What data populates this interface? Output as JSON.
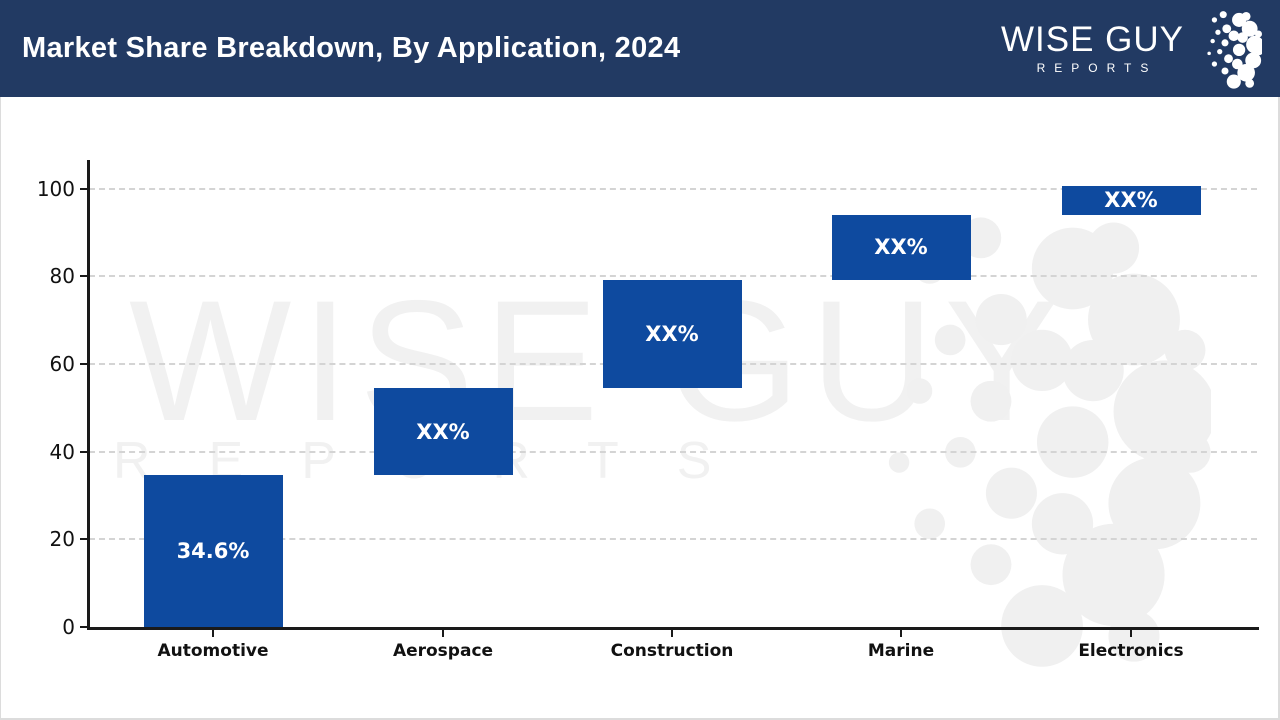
{
  "header": {
    "title": "Market Share Breakdown, By Application, 2024",
    "logo": {
      "primary": "WISE GUY",
      "secondary": "REPORTS",
      "icon": "dotted-face-logo"
    }
  },
  "watermark": {
    "line1": "WISE GUY",
    "line2": "REPORTS",
    "icon": "dotted-face-watermark"
  },
  "chart_data": {
    "type": "bar",
    "subtype": "waterfall",
    "title": "Market Share Breakdown, By Application, 2024",
    "categories": [
      "Automotive",
      "Aerospace",
      "Construction",
      "Marine",
      "Electronics"
    ],
    "segments": [
      {
        "category": "Automotive",
        "start": 0,
        "end": 34.6,
        "label": "34.6%"
      },
      {
        "category": "Aerospace",
        "start": 34.6,
        "end": 54.4,
        "label": "XX%"
      },
      {
        "category": "Construction",
        "start": 54.4,
        "end": 79.2,
        "label": "XX%"
      },
      {
        "category": "Marine",
        "start": 79.2,
        "end": 94.0,
        "label": "XX%"
      },
      {
        "category": "Electronics",
        "start": 94.0,
        "end": 100.6,
        "label": "XX%"
      }
    ],
    "y_ticks": [
      0,
      20,
      40,
      60,
      80,
      100
    ],
    "ylim": [
      0,
      106
    ],
    "xlabel": "",
    "ylabel": "",
    "grid": "horizontal-dashed",
    "legend": "none",
    "bar_color": "#0E4A9F",
    "bar_label_color": "#FFFFFF"
  },
  "colors": {
    "header_bg": "#223A63",
    "content_bg": "#FFFFFF",
    "border": "#DCDCDC",
    "grid": "#D4D4D4",
    "axis": "#1A1A1A",
    "watermark": "#F1F1F1"
  }
}
